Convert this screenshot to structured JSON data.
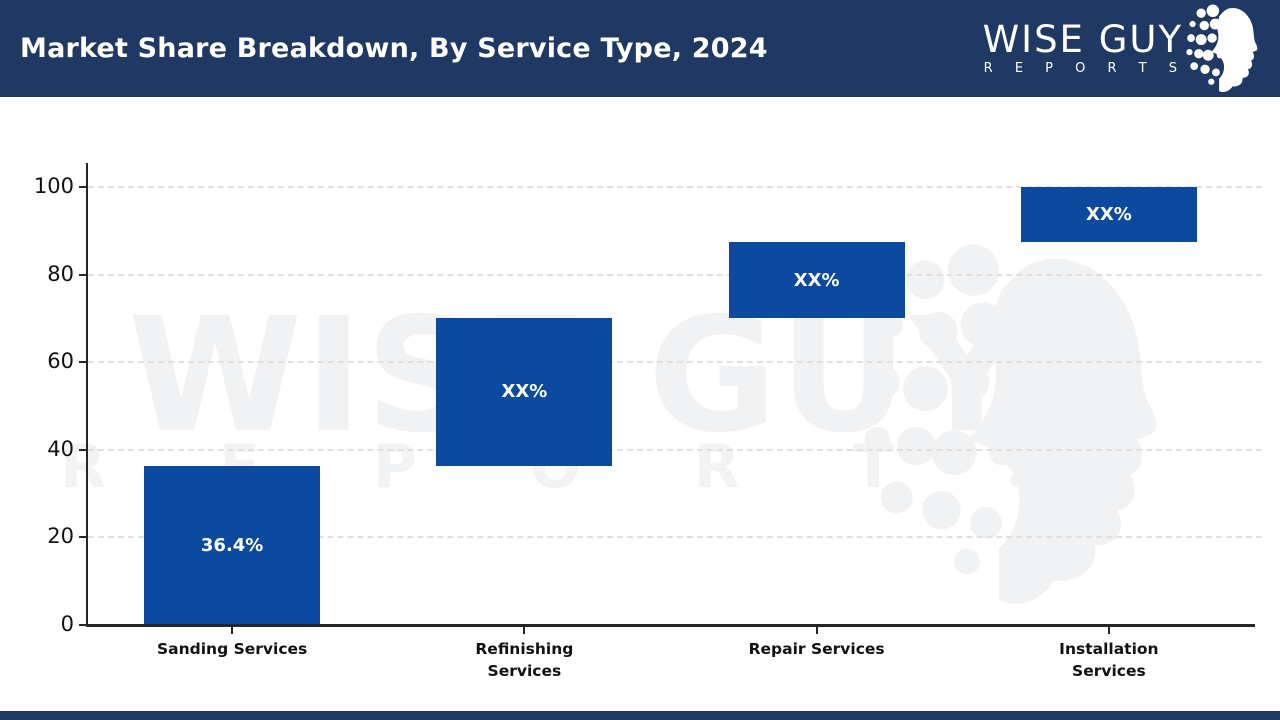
{
  "header": {
    "title": "Market Share Breakdown, By Service Type, 2024",
    "logo": {
      "line1": "WISE GUY",
      "line2": "R E P O R T S"
    }
  },
  "watermark": {
    "line1": "WISE GUY",
    "line2": "R E P O R T S"
  },
  "colors": {
    "header_bg": "#1f3864",
    "bar": "#0b4a9f",
    "bar_label": "#ffffff",
    "axis": "#262626",
    "gridline": "#e0e0e0",
    "watermark": "#f1f2f4"
  },
  "chart_data": {
    "type": "bar",
    "variant": "waterfall",
    "title": "Market Share Breakdown, By Service Type, 2024",
    "categories": [
      "Sanding Services",
      "Refinishing Services",
      "Repair Services",
      "Installation Services"
    ],
    "x_tick_labels": [
      "Sanding Services",
      "Refinishing\nServices",
      "Repair Services",
      "Installation\nServices"
    ],
    "segments": [
      {
        "category": "Sanding Services",
        "start": 0,
        "end": 36.4,
        "label": "36.4%"
      },
      {
        "category": "Refinishing Services",
        "start": 36.4,
        "end": 70,
        "label": "XX%"
      },
      {
        "category": "Repair Services",
        "start": 70,
        "end": 87.5,
        "label": "XX%"
      },
      {
        "category": "Installation Services",
        "start": 87.5,
        "end": 100,
        "label": "XX%"
      }
    ],
    "yticks": [
      0,
      20,
      40,
      60,
      80,
      100
    ],
    "ylim": [
      0,
      105
    ],
    "grid": "horizontal-dashed",
    "legend": "none",
    "bar_color": "#0b4a9f",
    "value_label_color": "#ffffff"
  }
}
